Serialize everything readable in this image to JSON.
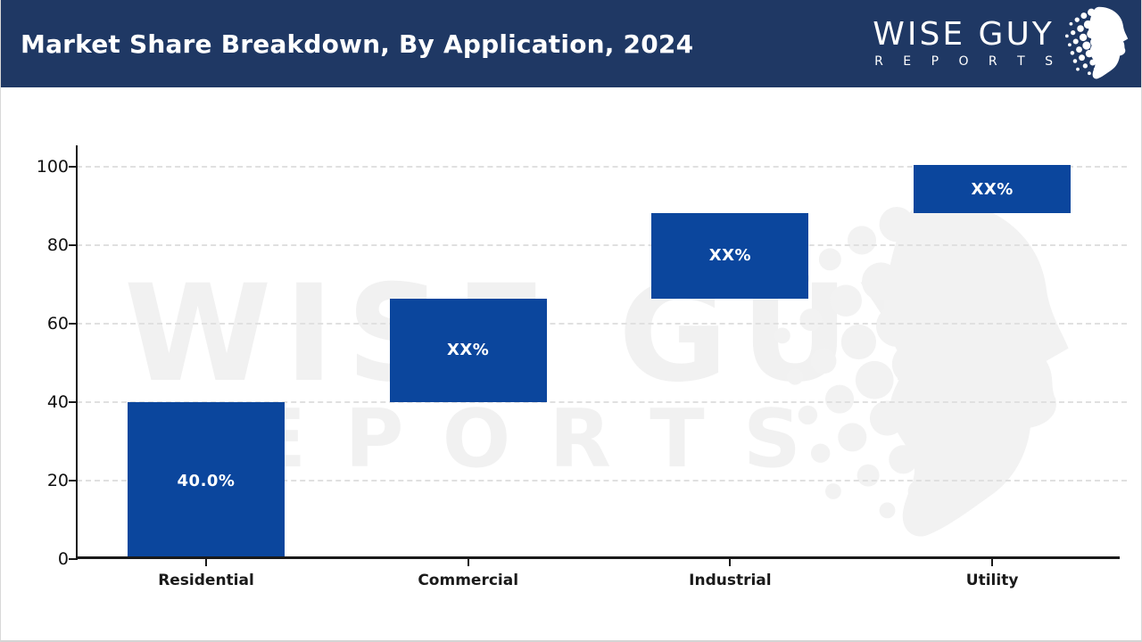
{
  "header": {
    "title": "Market Share Breakdown, By Application, 2024",
    "logo": {
      "name_line": "WISE GUY",
      "reports_line": "R E P O R T S",
      "head_icon": "dotted-face-profile"
    }
  },
  "watermark": {
    "name_line": "WISE GUY",
    "reports_line": "R E P O R T S"
  },
  "chart_data": {
    "type": "bar",
    "variant": "floating-segment-waterfall",
    "title": "Market Share Breakdown, By Application, 2024",
    "categories": [
      "Residential",
      "Commercial",
      "Industrial",
      "Utility"
    ],
    "bars": [
      {
        "category": "Residential",
        "start": 0,
        "end": 40,
        "label": "40.0%"
      },
      {
        "category": "Commercial",
        "start": 40,
        "end": 66.4,
        "label": "XX%"
      },
      {
        "category": "Industrial",
        "start": 66.4,
        "end": 88.2,
        "label": "XX%"
      },
      {
        "category": "Utility",
        "start": 88.2,
        "end": 100.4,
        "label": "XX%"
      }
    ],
    "yticks": [
      0,
      20,
      40,
      60,
      80,
      100
    ],
    "ylim": [
      0,
      105.5
    ],
    "xlabel": "",
    "ylabel": "",
    "grid": "horizontal-dashed",
    "legend": "none",
    "colors": {
      "bar": "#0b469d",
      "bar_label": "#ffffff",
      "axis": "#1a1a1a",
      "gridline": "#e0e0e0",
      "header_bg": "#1f3864",
      "watermark": "#f1f1f1"
    }
  }
}
